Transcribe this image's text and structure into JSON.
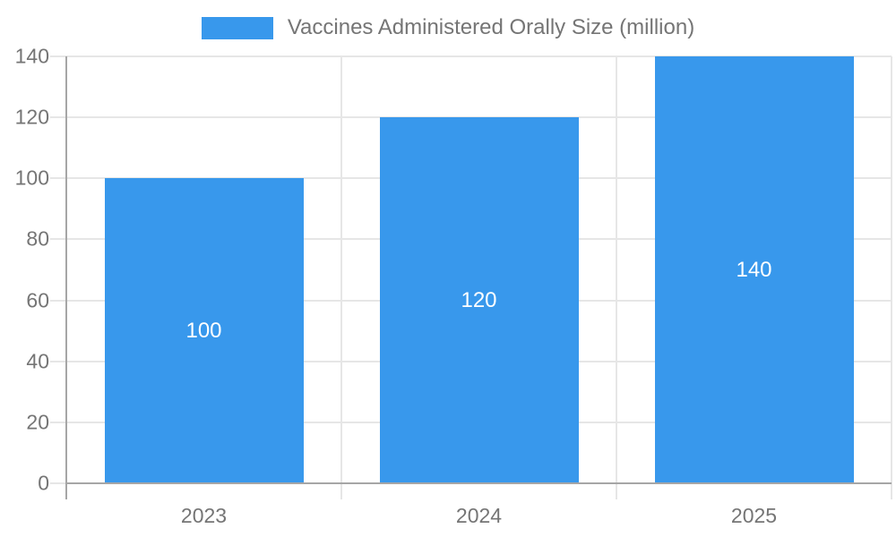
{
  "legend": {
    "label": "Vaccines Administered Orally Size (million)"
  },
  "chart_data": {
    "type": "bar",
    "title": "",
    "xlabel": "",
    "ylabel": "",
    "categories": [
      "2023",
      "2024",
      "2025"
    ],
    "series": [
      {
        "name": "Vaccines Administered Orally Size (million)",
        "values": [
          100,
          120,
          140
        ]
      }
    ],
    "data_labels": [
      "100",
      "120",
      "140"
    ],
    "ylim": [
      0,
      140
    ],
    "yticks": [
      0,
      20,
      40,
      60,
      80,
      100,
      120,
      140
    ],
    "grid": true,
    "legend_position": "top",
    "colors": {
      "bar": "#3898EC",
      "bar_value_label": "#FFFFFF",
      "axis_text": "#757575",
      "gridline": "#E6E6E6",
      "axis_line": "#A6A6A6",
      "background": "#FFFFFF"
    }
  }
}
